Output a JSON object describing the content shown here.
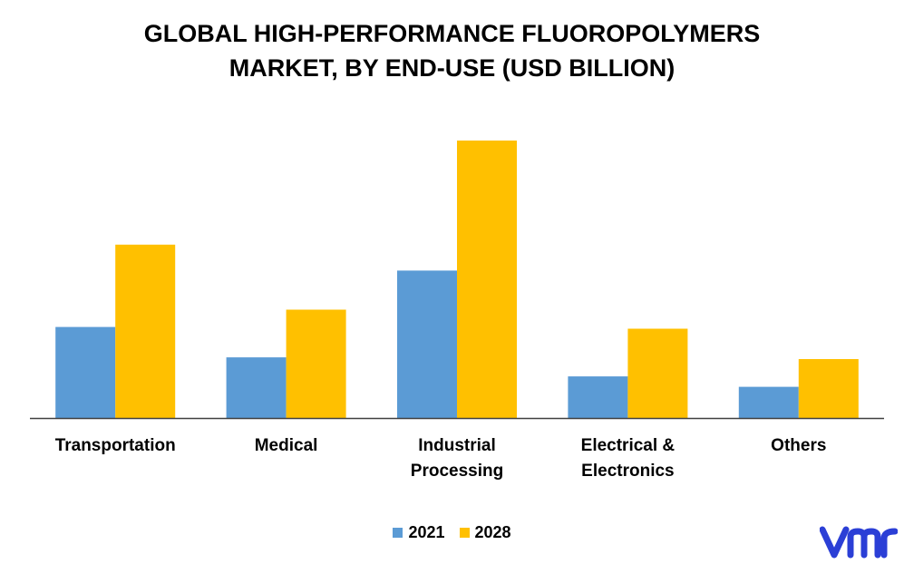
{
  "chart_data": {
    "type": "bar",
    "title": "GLOBAL HIGH-PERFORMANCE FLUOROPOLYMERS MARKET, BY END-USE (USD BILLION)",
    "title_lines": [
      "GLOBAL HIGH-PERFORMANCE FLUOROPOLYMERS",
      "MARKET, BY END-USE (USD BILLION)"
    ],
    "categories": [
      [
        "Transportation"
      ],
      [
        "Medical"
      ],
      [
        "Industrial",
        "Processing"
      ],
      [
        "Electrical &",
        "Electronics"
      ],
      [
        "Others"
      ]
    ],
    "series": [
      {
        "name": "2021",
        "color": "#5B9BD5",
        "values": [
          1.05,
          0.7,
          1.7,
          0.48,
          0.36
        ]
      },
      {
        "name": "2028",
        "color": "#FFC000",
        "values": [
          2.0,
          1.25,
          3.2,
          1.03,
          0.68
        ]
      }
    ],
    "ylim": [
      0,
      3.2
    ],
    "xlabel": "",
    "ylabel": "",
    "grid": false,
    "legend_position": "bottom-center",
    "axis_color": "#404040"
  },
  "logo": {
    "icon": "vmr-logo-icon",
    "color": "#2B3FD6"
  }
}
